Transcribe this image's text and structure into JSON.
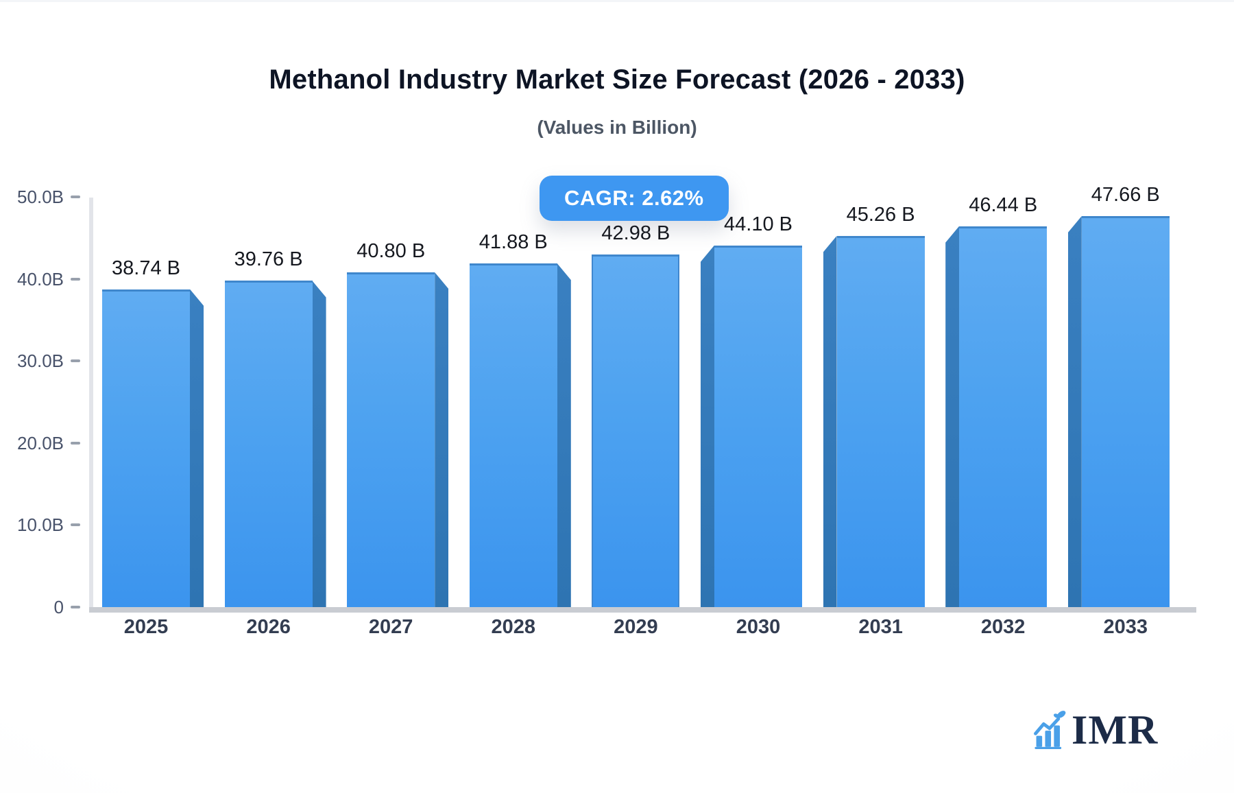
{
  "chart_data": {
    "type": "bar",
    "title": "Methanol Industry Market Size Forecast (2026 - 2033)",
    "subtitle": "(Values in Billion)",
    "annotation": "CAGR: 2.62%",
    "categories": [
      "2025",
      "2026",
      "2027",
      "2028",
      "2029",
      "2030",
      "2031",
      "2032",
      "2033"
    ],
    "values": [
      38.74,
      39.76,
      40.8,
      41.88,
      42.98,
      44.1,
      45.26,
      46.44,
      47.66
    ],
    "value_labels": [
      "38.74 B",
      "39.76 B",
      "40.80 B",
      "41.88 B",
      "42.98 B",
      "44.10 B",
      "45.26 B",
      "46.44 B",
      "47.66 B"
    ],
    "unit": "Billion",
    "ylim": [
      0,
      50
    ],
    "ytick_labels": [
      "50.0B",
      "40.0B",
      "30.0B",
      "20.0B",
      "10.0B",
      "0"
    ],
    "grid": false,
    "legend": false,
    "bar_style": "3d",
    "colors": {
      "bar_face_top": "#60acf2",
      "bar_face_bottom": "#3b94ee",
      "bar_side": "#2e74b2",
      "badge_background": "#3e97f1",
      "badge_text": "#ffffff",
      "axis_line": "#c9ccd2",
      "title_text": "#0d1424",
      "subtitle_text": "#4c5664"
    }
  },
  "logo": {
    "text": "IMR",
    "icon": "bar-chart-growth-leaf-icon",
    "icon_color": "#4aa0e8",
    "text_color": "#1c2b47"
  }
}
